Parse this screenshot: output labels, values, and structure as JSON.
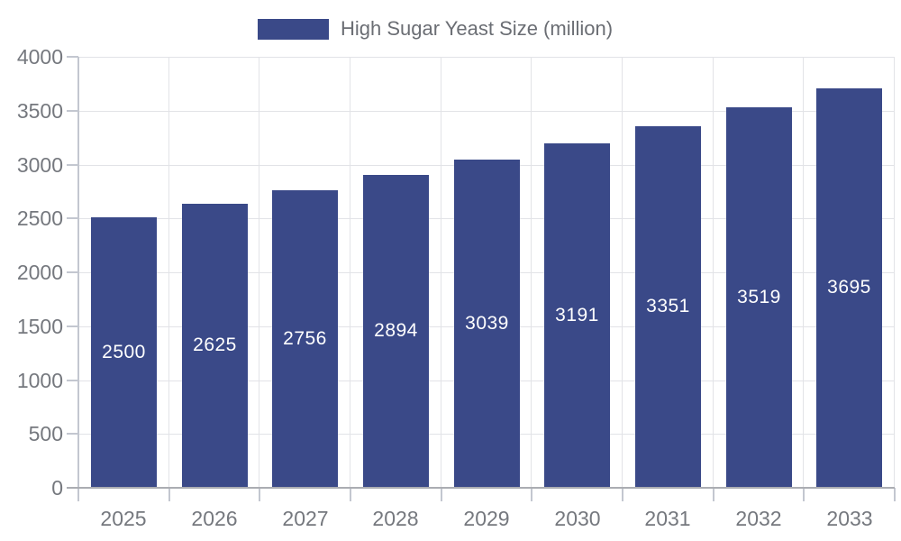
{
  "legend": {
    "label": "High Sugar Yeast Size (million)"
  },
  "chart_data": {
    "type": "bar",
    "title": "High Sugar Yeast Size (million)",
    "series_name": "High Sugar Yeast Size (million)",
    "categories": [
      "2025",
      "2026",
      "2027",
      "2028",
      "2029",
      "2030",
      "2031",
      "2032",
      "2033"
    ],
    "values": [
      2500,
      2625,
      2756,
      2894,
      3039,
      3191,
      3351,
      3519,
      3695
    ],
    "xlabel": "",
    "ylabel": "",
    "ylim": [
      0,
      4000
    ],
    "ytick_step": 500,
    "yticks": [
      0,
      500,
      1000,
      1500,
      2000,
      2500,
      3000,
      3500,
      4000
    ],
    "grid": "on",
    "legend_position": "top",
    "value_labels": "inside-center"
  },
  "colors": {
    "bar": "#3a4988",
    "bar_value_text": "#ffffff",
    "axis_text": "#75787e",
    "legend_text": "#6b6e74",
    "grid_line": "#e2e3e7",
    "axis_line_bottom": "#abadb2",
    "axis_line_left": "#c3c7d0",
    "tick_line": "#c3c7d0",
    "background": "#ffffff"
  }
}
